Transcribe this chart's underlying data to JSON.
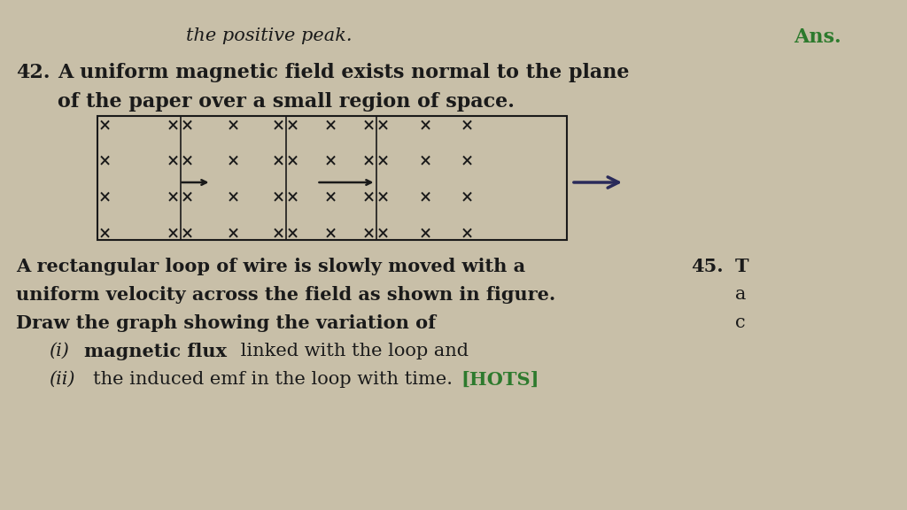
{
  "bg_color": "#c8bfa8",
  "text_color": "#1a1a1a",
  "green_color": "#2d7a2d",
  "top_text": "the positive peak.",
  "ans_text": "Ans.",
  "q42_num": "42.",
  "q42_line1": "A uniform magnetic field exists normal to the plane",
  "q42_line2": "of the paper over a small region of space.",
  "para1_line1": "A rectangular loop of wire is slowly moved with a",
  "para1_line2": "uniform velocity across the field as shown in figure.",
  "para2": "Draw the graph showing the variation of",
  "hots_text": "[HOTS]",
  "cross_symbol": "×",
  "arrow_color": "#1a1a1a",
  "dark_arrow_color": "#2a2a5a",
  "box_color": "#1a1a1a",
  "font_size_main": 15,
  "font_size_top": 14,
  "font_size_bold_q": 16
}
